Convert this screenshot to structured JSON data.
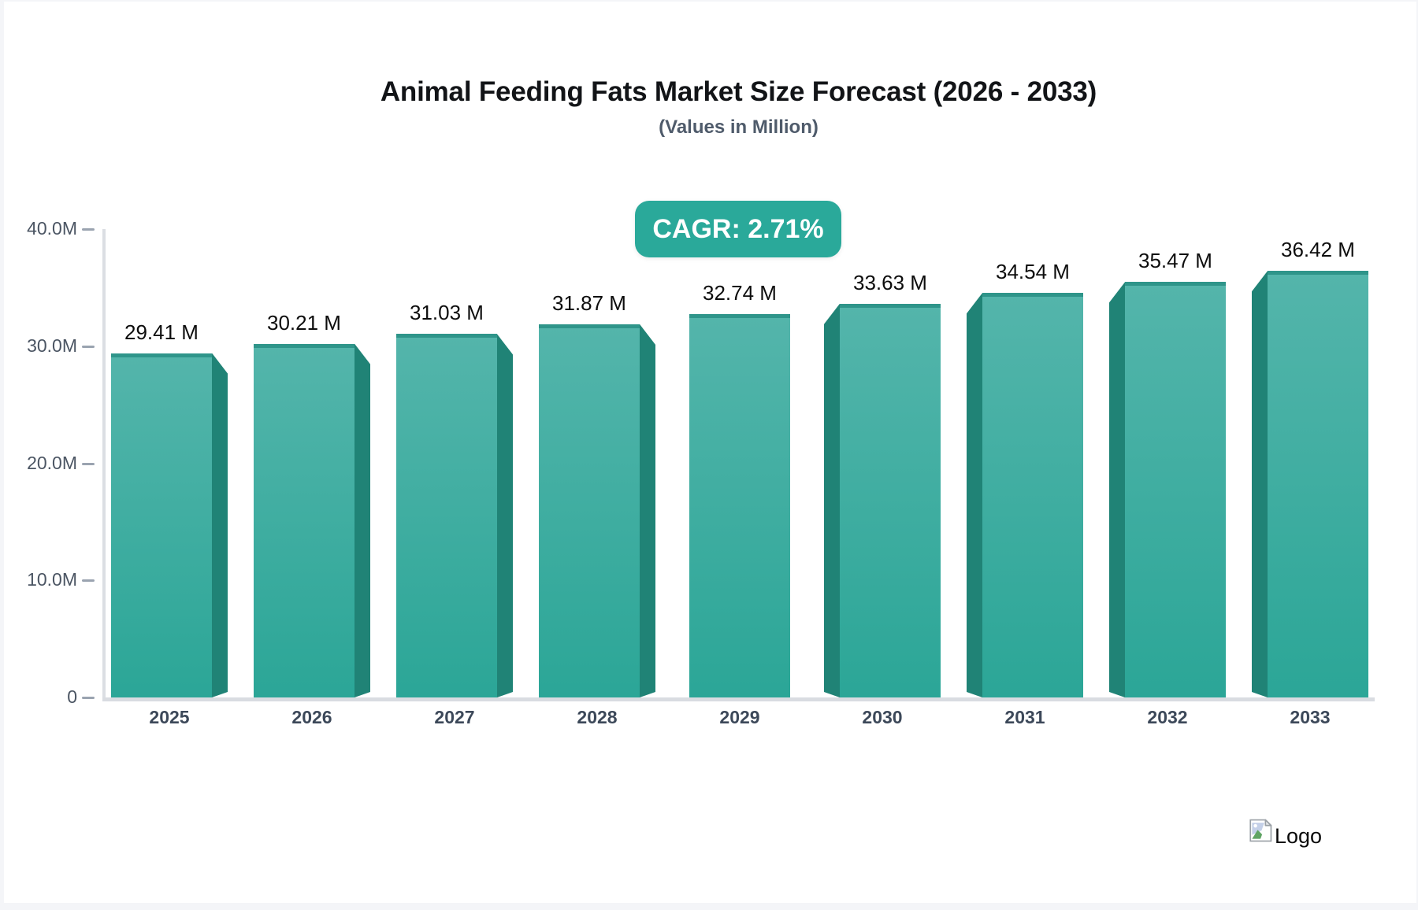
{
  "header": {
    "title": "Animal Feeding Fats Market Size Forecast (2026 - 2033)",
    "subtitle": "(Values in Million)"
  },
  "badge": {
    "label": "CAGR: 2.71%",
    "color": "#2aa99a",
    "text_color": "#ffffff"
  },
  "chart_data": {
    "type": "bar",
    "title": "Animal Feeding Fats Market Size Forecast (2026 - 2033)",
    "subtitle": "(Values in Million)",
    "categories": [
      "2025",
      "2026",
      "2027",
      "2028",
      "2029",
      "2030",
      "2031",
      "2032",
      "2033"
    ],
    "values": [
      29.41,
      30.21,
      31.03,
      31.87,
      32.74,
      33.63,
      34.54,
      35.47,
      36.42
    ],
    "value_labels": [
      "29.41 M",
      "30.21 M",
      "31.03 M",
      "31.87 M",
      "32.74 M",
      "33.63 M",
      "34.54 M",
      "35.47 M",
      "36.42 M"
    ],
    "unit": "Million",
    "cagr": "2.71%",
    "xlabel": "",
    "ylabel": "",
    "ylim": [
      0,
      40
    ],
    "y_ticks": [
      {
        "value": 40,
        "label": "40.0M"
      },
      {
        "value": 30,
        "label": "30.0M"
      },
      {
        "value": 20,
        "label": "20.0M"
      },
      {
        "value": 10,
        "label": "10.0M"
      },
      {
        "value": 0,
        "label": "0"
      }
    ],
    "grid": false,
    "legend": false,
    "bar_face_color_top": "#54b5ab",
    "bar_face_color_bottom": "#2ba697",
    "bar_side_color": "#208376",
    "style": "3d-perspective-center"
  },
  "footer": {
    "logo_alt": "Logo",
    "logo_icon": "broken-image-icon"
  }
}
